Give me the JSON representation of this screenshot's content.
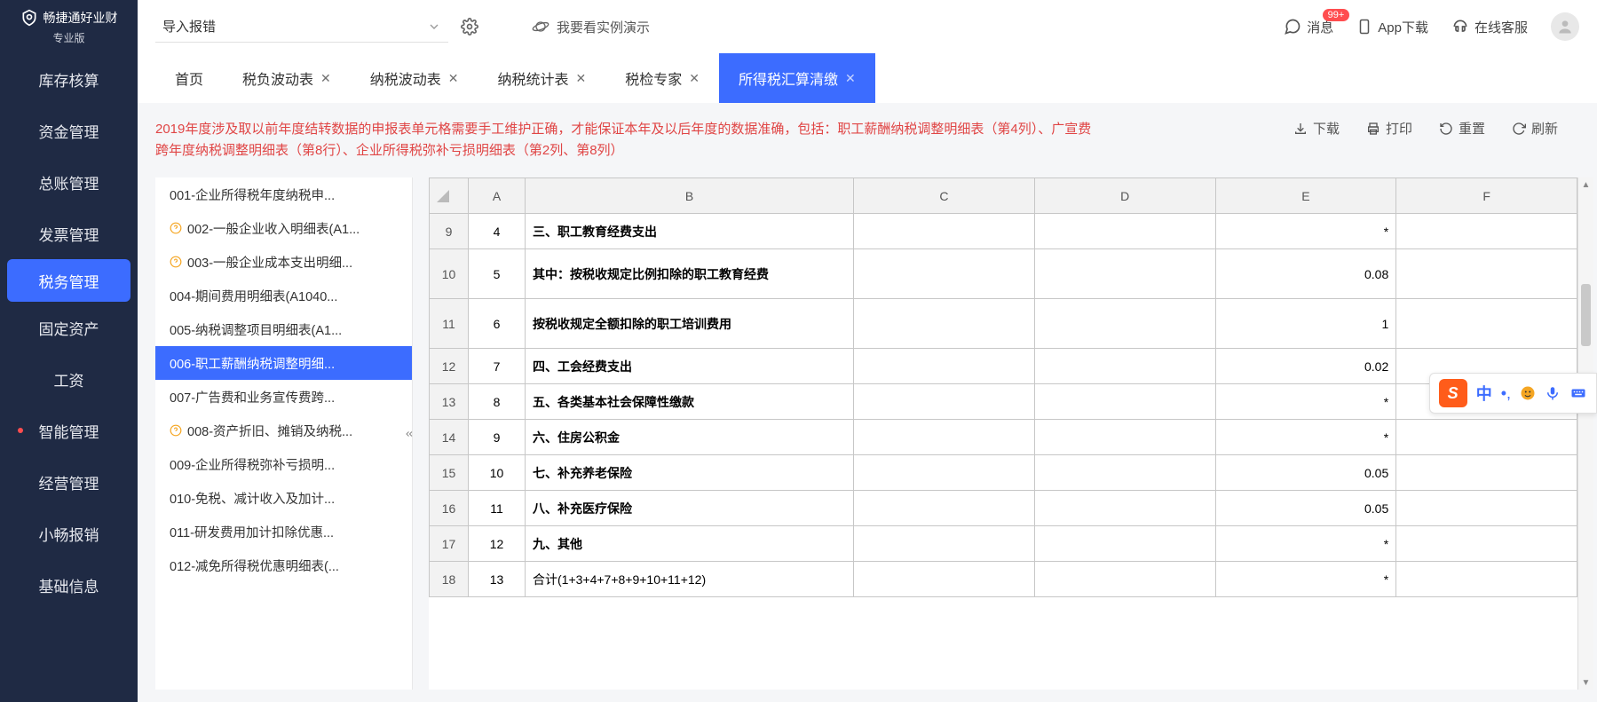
{
  "brand": {
    "name": "畅捷通好业财",
    "edition": "专业版"
  },
  "search": {
    "value": "导入报错"
  },
  "demo_link": "我要看实例演示",
  "header_right": {
    "msg": "消息",
    "msg_badge": "99+",
    "app": "App下载",
    "cs": "在线客服"
  },
  "sidebar": {
    "items": [
      {
        "label": "库存核算"
      },
      {
        "label": "资金管理"
      },
      {
        "label": "总账管理"
      },
      {
        "label": "发票管理"
      },
      {
        "label": "税务管理",
        "active": true
      },
      {
        "label": "固定资产"
      },
      {
        "label": "工资"
      },
      {
        "label": "智能管理",
        "dot": true
      },
      {
        "label": "经营管理"
      },
      {
        "label": "小畅报销"
      },
      {
        "label": "基础信息"
      }
    ]
  },
  "tabs": [
    {
      "label": "首页",
      "closable": false
    },
    {
      "label": "税负波动表",
      "closable": true
    },
    {
      "label": "纳税波动表",
      "closable": true
    },
    {
      "label": "纳税统计表",
      "closable": true
    },
    {
      "label": "税检专家",
      "closable": true
    },
    {
      "label": "所得税汇算清缴",
      "closable": true,
      "active": true
    }
  ],
  "notice": "2019年度涉及取以前年度结转数据的申报表单元格需要手工维护正确，才能保证本年及以后年度的数据准确，包括：职工薪酬纳税调整明细表（第4列）、广宣费跨年度纳税调整明细表（第8行）、企业所得税弥补亏损明细表（第2列、第8列）",
  "toolbar": {
    "download": "下载",
    "print": "打印",
    "reset": "重置",
    "refresh": "刷新"
  },
  "form_list": [
    {
      "label": "001-企业所得税年度纳税申..."
    },
    {
      "label": "002-一般企业收入明细表(A1...",
      "warn": true
    },
    {
      "label": "003-一般企业成本支出明细...",
      "warn": true
    },
    {
      "label": "004-期间费用明细表(A1040..."
    },
    {
      "label": "005-纳税调整项目明细表(A1..."
    },
    {
      "label": "006-职工薪酬纳税调整明细...",
      "active": true
    },
    {
      "label": "007-广告费和业务宣传费跨..."
    },
    {
      "label": "008-资产折旧、摊销及纳税...",
      "warn": true
    },
    {
      "label": "009-企业所得税弥补亏损明..."
    },
    {
      "label": "010-免税、减计收入及加计..."
    },
    {
      "label": "011-研发费用加计扣除优惠..."
    },
    {
      "label": "012-减免所得税优惠明细表(..."
    }
  ],
  "sheet": {
    "columns": [
      "A",
      "B",
      "C",
      "D",
      "E",
      "F"
    ],
    "rows": [
      {
        "num": "9",
        "a": "4",
        "b": "三、职工教育经费支出",
        "bold": true,
        "e": "*"
      },
      {
        "num": "10",
        "a": "5",
        "b": "其中：按税收规定比例扣除的职工教育经费",
        "bold": true,
        "e": "0.08",
        "tall": true
      },
      {
        "num": "11",
        "a": "6",
        "b": "按税收规定全额扣除的职工培训费用",
        "bold": true,
        "e": "1",
        "tall": true
      },
      {
        "num": "12",
        "a": "7",
        "b": "四、工会经费支出",
        "bold": true,
        "e": "0.02"
      },
      {
        "num": "13",
        "a": "8",
        "b": "五、各类基本社会保障性缴款",
        "bold": true,
        "e": "*"
      },
      {
        "num": "14",
        "a": "9",
        "b": "六、住房公积金",
        "bold": true,
        "e": "*"
      },
      {
        "num": "15",
        "a": "10",
        "b": "七、补充养老保险",
        "bold": true,
        "e": "0.05"
      },
      {
        "num": "16",
        "a": "11",
        "b": "八、补充医疗保险",
        "bold": true,
        "e": "0.05"
      },
      {
        "num": "17",
        "a": "12",
        "b": "九、其他",
        "bold": true,
        "e": "*"
      },
      {
        "num": "18",
        "a": "13",
        "b": "合计(1+3+4+7+8+9+10+11+12)",
        "bold": false,
        "e": "*"
      }
    ]
  },
  "ime": {
    "label": "中"
  }
}
